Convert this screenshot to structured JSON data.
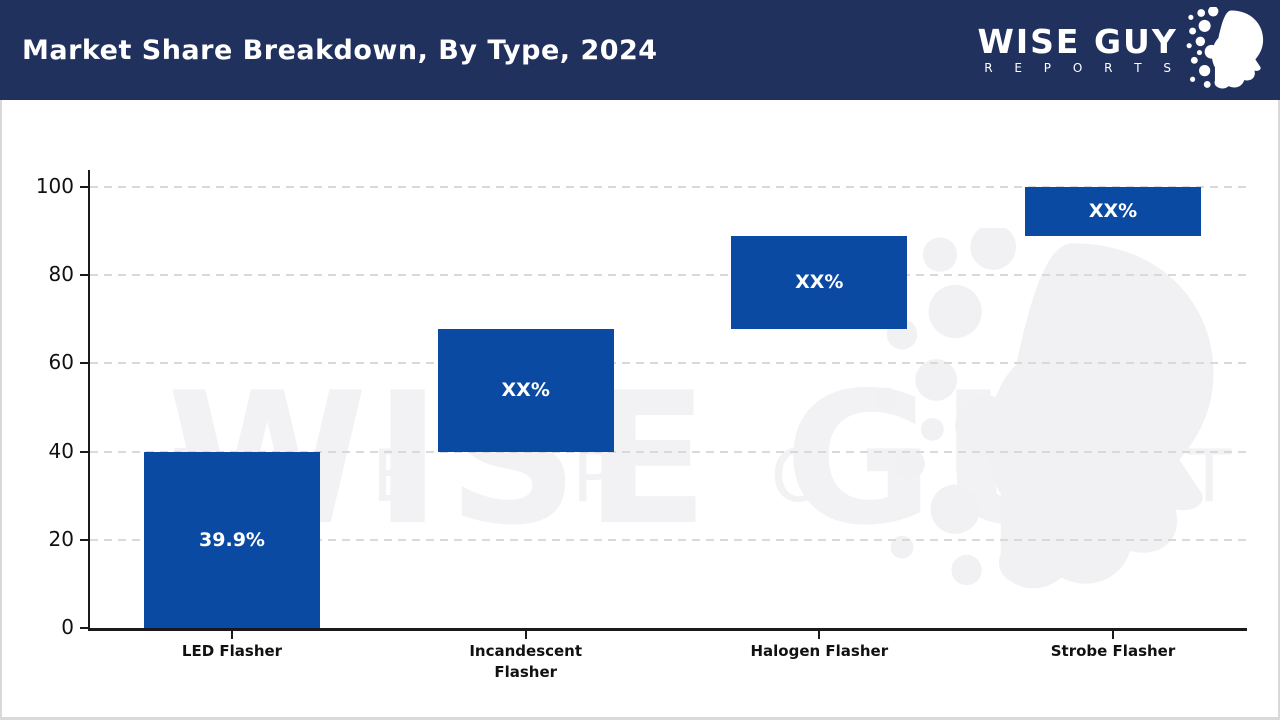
{
  "header": {
    "title": "Market Share Breakdown, By Type, 2024",
    "bg_color": "#21315E",
    "logo": {
      "wordmark": "WISE GUY",
      "subtext": "R E P O R T S"
    }
  },
  "watermark": {
    "line1": "WISE GU",
    "line2": "R E P O R T S"
  },
  "chart_data": {
    "type": "bar",
    "subtype": "waterfall",
    "title": "Market Share Breakdown, By Type, 2024",
    "xlabel": "",
    "ylabel": "",
    "categories": [
      "LED Flasher",
      "Incandescent Flasher",
      "Halogen Flasher",
      "Strobe Flasher"
    ],
    "segments": [
      {
        "category": "LED Flasher",
        "start": 0,
        "end": 39.9,
        "label": "39.9%"
      },
      {
        "category": "Incandescent Flasher",
        "start": 39.9,
        "end": 67.9,
        "label": "XX%"
      },
      {
        "category": "Halogen Flasher",
        "start": 67.9,
        "end": 89.0,
        "label": "XX%"
      },
      {
        "category": "Strobe Flasher",
        "start": 89.0,
        "end": 100.0,
        "label": "XX%"
      }
    ],
    "ylim": [
      0,
      100
    ],
    "yticks": [
      0,
      20,
      40,
      60,
      80,
      100
    ],
    "grid": "horizontal-dashed",
    "legend": "none",
    "bar_color": "#0B4AA2",
    "bar_label_color": "#FFFFFF",
    "axis_color": "#1a1a1a",
    "grid_color": "#d9d9d9"
  }
}
